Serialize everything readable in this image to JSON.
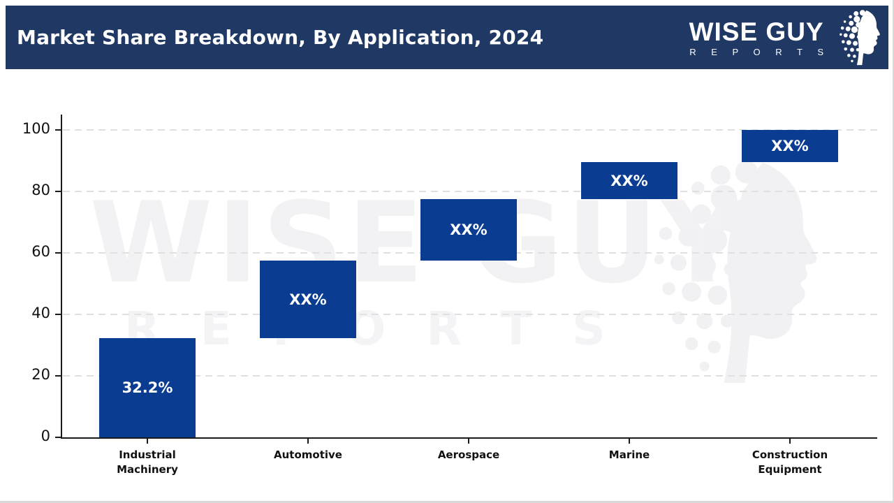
{
  "header": {
    "title": "Market Share Breakdown, By Application, 2024",
    "logo": {
      "line1": "WISE GUY",
      "line2": "R E P O R T S"
    }
  },
  "watermark": {
    "line1": "WISE GUY",
    "line2": "REPORTS"
  },
  "colors": {
    "header_bg": "#1f3864",
    "bar": "#0a3d91",
    "bar_label": "#ffffff",
    "grid": "#e0e0e0",
    "axis": "#1a1a1a",
    "tick_label": "#111111",
    "watermark": "#f2f2f4"
  },
  "chart_data": {
    "type": "bar",
    "subtype": "waterfall-floating-bars",
    "title": "Market Share Breakdown, By Application, 2024",
    "categories": [
      "Industrial Machinery",
      "Automotive",
      "Aerospace",
      "Marine",
      "Construction Equipment"
    ],
    "segments": [
      {
        "category": "Industrial Machinery",
        "start": 0,
        "end": 32.2,
        "label": "32.2%"
      },
      {
        "category": "Automotive",
        "start": 32.2,
        "end": 57.5,
        "label": "XX%"
      },
      {
        "category": "Aerospace",
        "start": 57.5,
        "end": 77.5,
        "label": "XX%"
      },
      {
        "category": "Marine",
        "start": 77.5,
        "end": 89.5,
        "label": "XX%"
      },
      {
        "category": "Construction Equipment",
        "start": 89.5,
        "end": 100,
        "label": "XX%"
      }
    ],
    "yticks": [
      0,
      20,
      40,
      60,
      80,
      100
    ],
    "ylim": [
      0,
      105
    ],
    "xlabel": "",
    "ylabel": "",
    "grid": "horizontal-dashed",
    "legend": "none"
  }
}
